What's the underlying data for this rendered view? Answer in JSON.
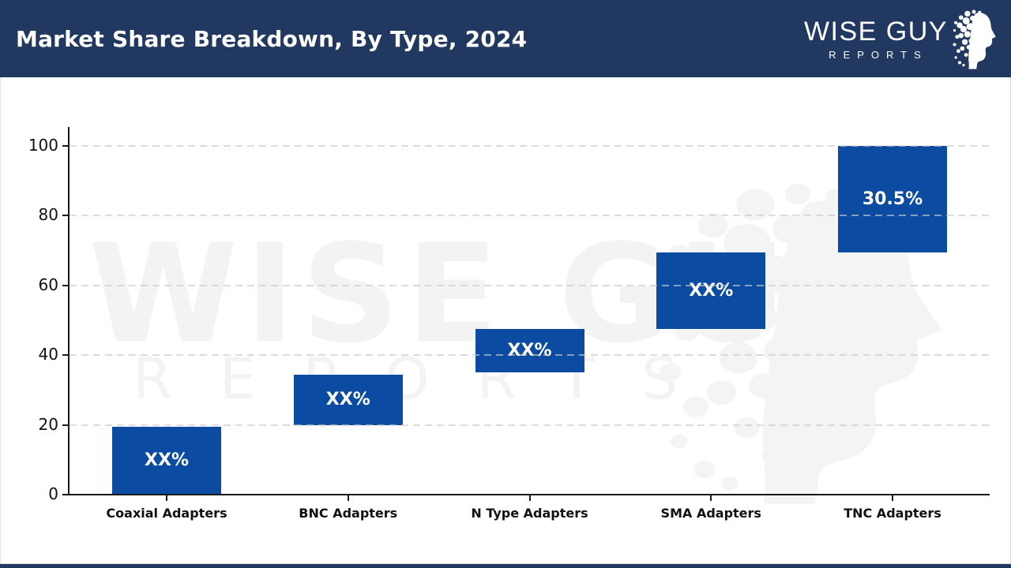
{
  "page": {
    "header": {
      "title": "Market Share Breakdown, By Type, 2024",
      "background_color": "#213861",
      "logo": {
        "line1": "WISE GUY",
        "line2": "REPORTS",
        "icon": "dotted-head-profile-icon"
      }
    },
    "watermark": {
      "line1": "WISE GUY",
      "line2": "REPORTS",
      "icon": "dotted-head-profile-icon"
    }
  },
  "chart_data": {
    "type": "bar",
    "variant": "floating-segment waterfall of market share",
    "title": "Market Share Breakdown, By Type, 2024",
    "categories": [
      "Coaxial Adapters",
      "BNC Adapters",
      "N Type Adapters",
      "SMA Adapters",
      "TNC Adapters"
    ],
    "bars": [
      {
        "category": "Coaxial Adapters",
        "start": 0,
        "end": 19.5,
        "label": "XX%"
      },
      {
        "category": "BNC Adapters",
        "start": 20,
        "end": 34.5,
        "label": "XX%"
      },
      {
        "category": "N Type Adapters",
        "start": 35,
        "end": 47.5,
        "label": "XX%"
      },
      {
        "category": "SMA Adapters",
        "start": 47.5,
        "end": 69.5,
        "label": "XX%"
      },
      {
        "category": "TNC Adapters",
        "start": 69.5,
        "end": 100,
        "label": "30.5%"
      }
    ],
    "xlabel": "",
    "ylabel": "",
    "ylim": [
      0,
      100
    ],
    "yticks": [
      0,
      20,
      40,
      60,
      80,
      100
    ],
    "grid": {
      "horizontal": true,
      "style": "dashed",
      "drawn_over_bars": true
    },
    "legend": false,
    "colors": {
      "bar": "#0b4ba1",
      "bar_label": "#ffffff",
      "axis": "#1a1a1a",
      "tick_label": "#111111",
      "gridline": "#cacaca"
    }
  }
}
